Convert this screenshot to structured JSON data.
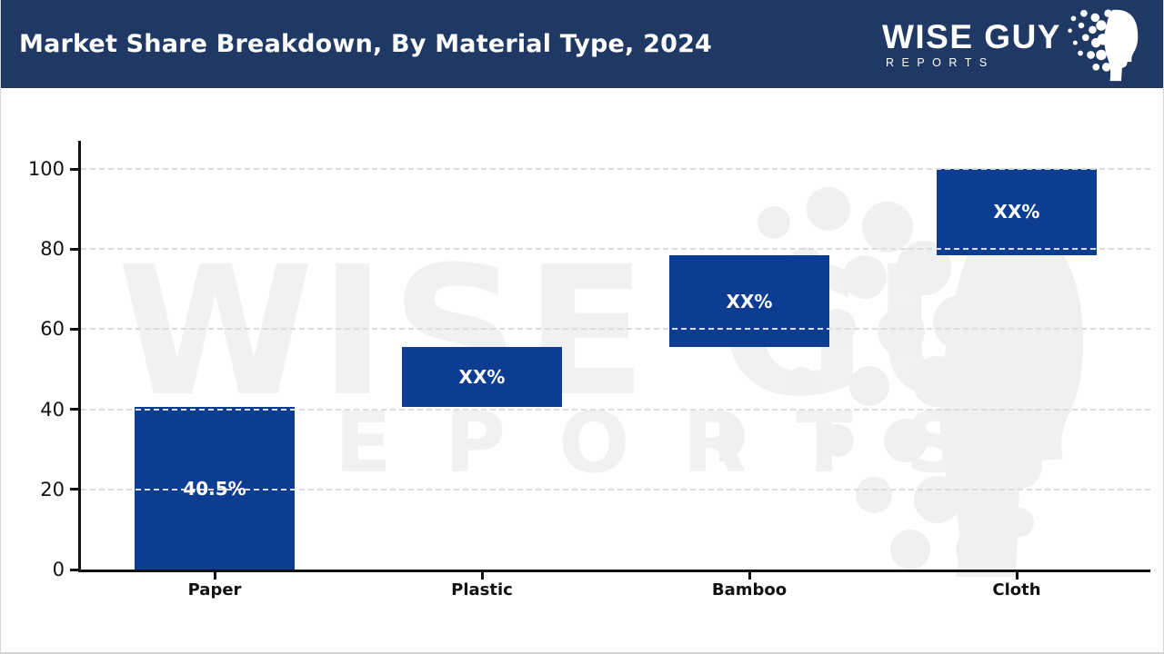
{
  "header": {
    "title": "Market Share Breakdown, By Material Type, 2024",
    "background": "#1f3864",
    "logo": {
      "line1": "WISE GUY",
      "line2": "REPORTS"
    }
  },
  "watermark": {
    "line1": "WISE GU",
    "line2": "REPORTS"
  },
  "chart_data": {
    "type": "bar",
    "subtype": "waterfall",
    "title": "Market Share Breakdown, By Material Type, 2024",
    "categories": [
      "Paper",
      "Plastic",
      "Bamboo",
      "Cloth"
    ],
    "segments": [
      {
        "category": "Paper",
        "start": 0,
        "end": 40.5,
        "label": "40.5%"
      },
      {
        "category": "Plastic",
        "start": 40.5,
        "end": 55.5,
        "label": "XX%"
      },
      {
        "category": "Bamboo",
        "start": 55.5,
        "end": 78.5,
        "label": "XX%"
      },
      {
        "category": "Cloth",
        "start": 78.5,
        "end": 100,
        "label": "XX%"
      }
    ],
    "yticks": [
      0,
      20,
      40,
      60,
      80,
      100
    ],
    "ylim": [
      0,
      107
    ],
    "grid": "horizontal-dashed",
    "legend": "none",
    "colors": {
      "bar": "#0d3d91",
      "bar_label": "#ffffff",
      "axis": "#111111",
      "gridline": "#dcdcdc",
      "header_bg": "#1f3864",
      "watermark": "#f1f1f3"
    }
  }
}
